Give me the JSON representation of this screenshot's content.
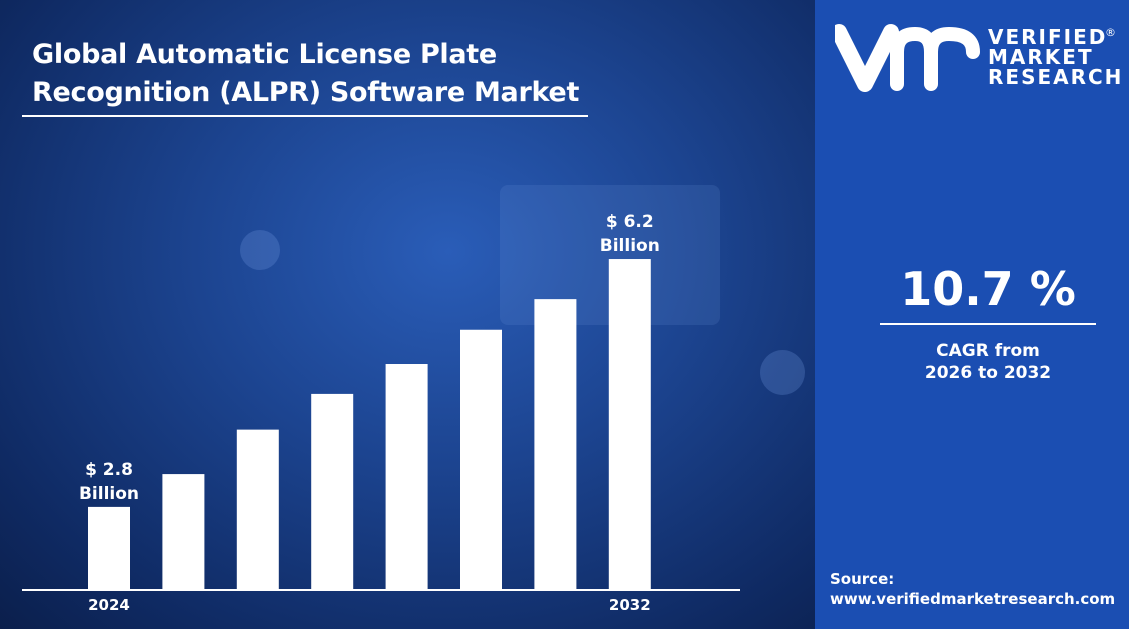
{
  "title_line1": "Global Automatic License Plate",
  "title_line2": "Recognition (ALPR) Software Market",
  "brand": {
    "line1": "VERIFIED",
    "line2": "MARKET",
    "line3": "RESEARCH",
    "registered": "®",
    "logo_text": "vmr"
  },
  "cagr": {
    "value": "10.7 %",
    "label_line1": "CAGR from",
    "label_line2": "2026 to 2032"
  },
  "source": {
    "label": "Source:",
    "url": "www.verifiedmarketresearch.com"
  },
  "colors": {
    "panel": "#1b4eb2",
    "bars": "#ffffff",
    "background": "#1c4490"
  },
  "chart_data": {
    "type": "bar",
    "categories": [
      "2024",
      "",
      "",
      "",
      "",
      "",
      "",
      "2032"
    ],
    "values": [
      2.8,
      3.25,
      3.86,
      4.35,
      4.76,
      5.23,
      5.65,
      6.2
    ],
    "tick_labels": [
      "2024",
      "2032"
    ],
    "data_labels": [
      {
        "index": 0,
        "line1": "$ 2.8",
        "line2": "Billion"
      },
      {
        "index": 7,
        "line1": "$ 6.2",
        "line2": "Billion"
      }
    ],
    "unit": "Billion USD",
    "grid": false,
    "legend": "none"
  }
}
